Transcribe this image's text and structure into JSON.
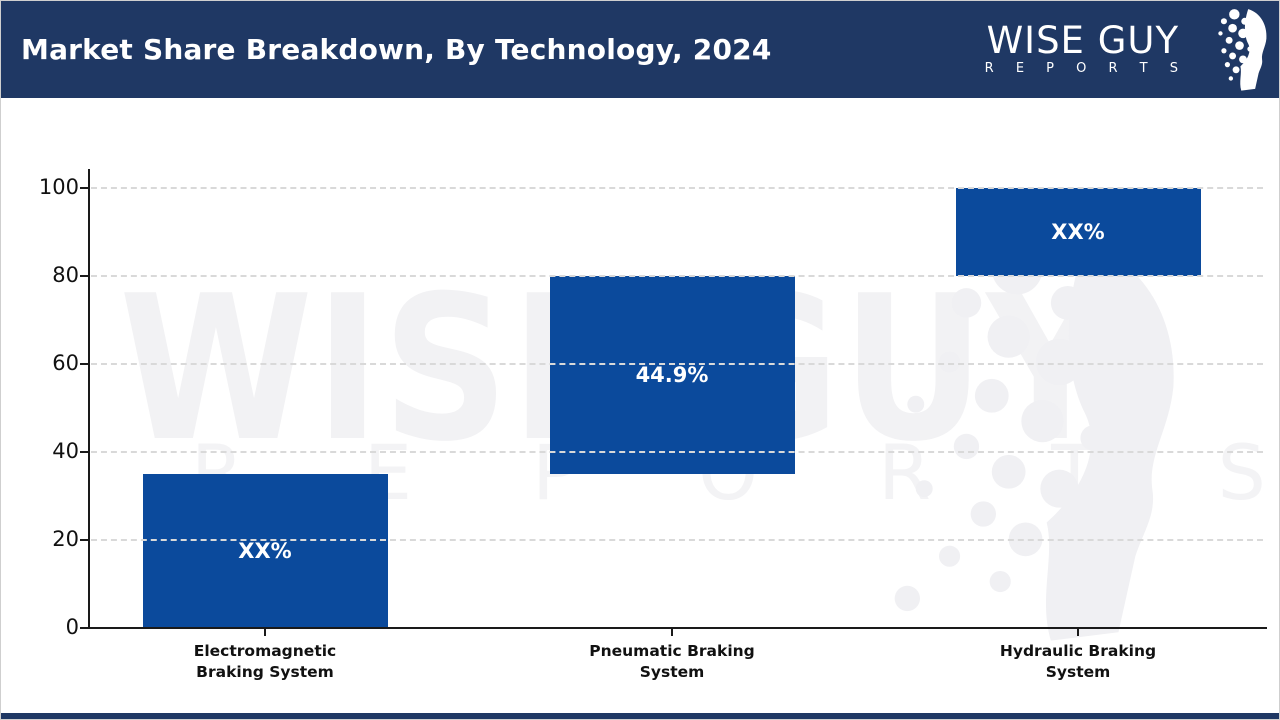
{
  "header": {
    "title": "Market Share Breakdown, By Technology, 2024",
    "logo": {
      "brand_line1": "WISE GUY",
      "brand_line2": "R E P O R T S",
      "icon": "dotted-head-silhouette"
    }
  },
  "watermark": {
    "line1": "WISE GUY",
    "line2": "R E P O R T S",
    "icon": "dotted-head-silhouette"
  },
  "chart_data": {
    "type": "bar",
    "subtype": "floating-segment (stacked waterfall style)",
    "title": "Market Share Breakdown, By Technology, 2024",
    "categories": [
      "Electromagnetic Braking System",
      "Pneumatic Braking System",
      "Hydraulic Braking System"
    ],
    "category_label_lines": [
      [
        "Electromagnetic",
        "Braking System"
      ],
      [
        "Pneumatic Braking",
        "System"
      ],
      [
        "Hydraulic Braking",
        "System"
      ]
    ],
    "bars": [
      {
        "category": "Electromagnetic Braking System",
        "start": 0,
        "end": 35.1,
        "value_label": "XX%"
      },
      {
        "category": "Pneumatic Braking System",
        "start": 35.1,
        "end": 80,
        "value_label": "44.9%"
      },
      {
        "category": "Hydraulic Braking System",
        "start": 80,
        "end": 100,
        "value_label": "XX%"
      }
    ],
    "ylim": [
      0,
      100
    ],
    "yticks": [
      0,
      20,
      40,
      60,
      80,
      100
    ],
    "xlabel": "",
    "ylabel": "",
    "grid": "horizontal dashed, drawn over bars",
    "legend": "none",
    "bar_color": "#0b4a9c"
  },
  "colors": {
    "header_bg": "#1f3864",
    "footer_bg": "#1f3864",
    "bar": "#0b4a9c",
    "grid": "#d9d9d9",
    "axis": "#1a1a1a",
    "title_text": "#ffffff",
    "bar_label_text": "#ffffff",
    "watermark": "#f2f2f4"
  }
}
